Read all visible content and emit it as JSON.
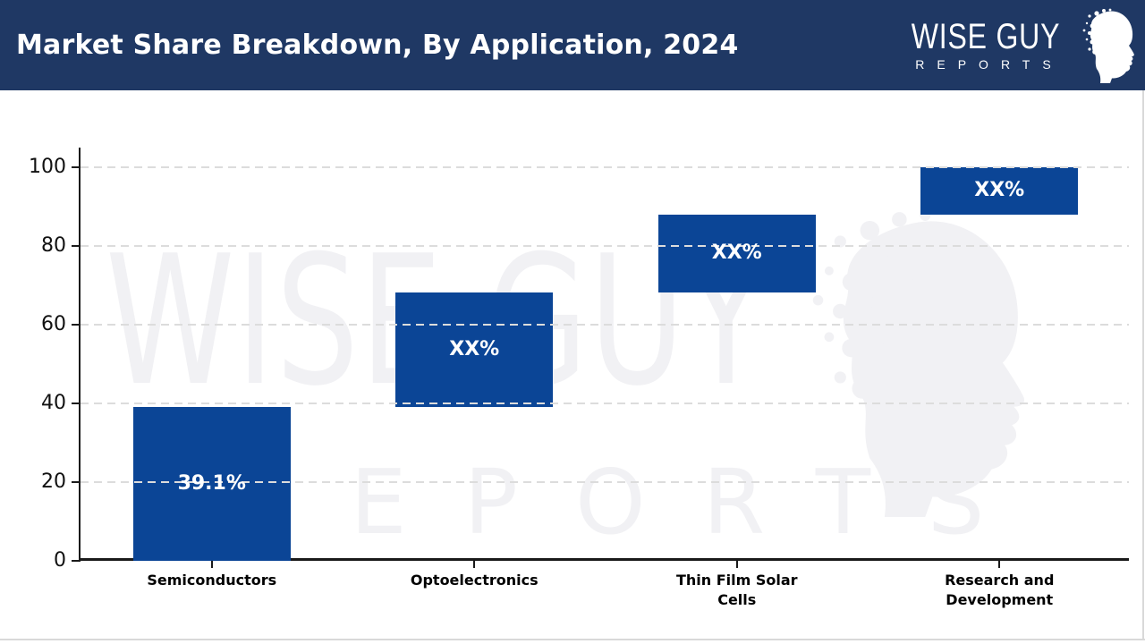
{
  "header": {
    "title": "Market Share Breakdown, By Application, 2024",
    "brand": {
      "name_line": "WISE GUY",
      "sub_line": "REPORTS"
    }
  },
  "watermark": {
    "name_line": "WISE GUY",
    "sub_line": "REPORTS"
  },
  "chart_data": {
    "type": "bar",
    "subtype": "waterfall",
    "title": "Market Share Breakdown, By Application, 2024",
    "categories": [
      "Semiconductors",
      "Optoelectronics",
      "Thin Film Solar\nCells",
      "Research and\nDevelopment"
    ],
    "bars": [
      {
        "category": "Semiconductors",
        "start": 0,
        "end": 39.1,
        "label": "39.1%"
      },
      {
        "category": "Optoelectronics",
        "start": 39.1,
        "end": 68.2,
        "label": "XX%"
      },
      {
        "category": "Thin Film Solar Cells",
        "start": 68.2,
        "end": 88.0,
        "label": "XX%"
      },
      {
        "category": "Research and Development",
        "start": 88.0,
        "end": 100.0,
        "label": "XX%"
      }
    ],
    "y_ticks": [
      0,
      20,
      40,
      60,
      80,
      100
    ],
    "ylim": [
      0,
      105
    ],
    "xlabel": "",
    "ylabel": "",
    "grid": "horizontal-dashed",
    "legend": "none",
    "bar_width_fraction": 0.6,
    "colors": {
      "bar": "#0b4596",
      "bar_label": "#ffffff",
      "grid": "#dcdcdc",
      "axis": "#1a1a1a",
      "tick_label": "#111111"
    }
  },
  "colors": {
    "header_bg": "#1f3864",
    "header_text": "#ffffff",
    "watermark": "#f1f1f4",
    "background": "#ffffff"
  }
}
